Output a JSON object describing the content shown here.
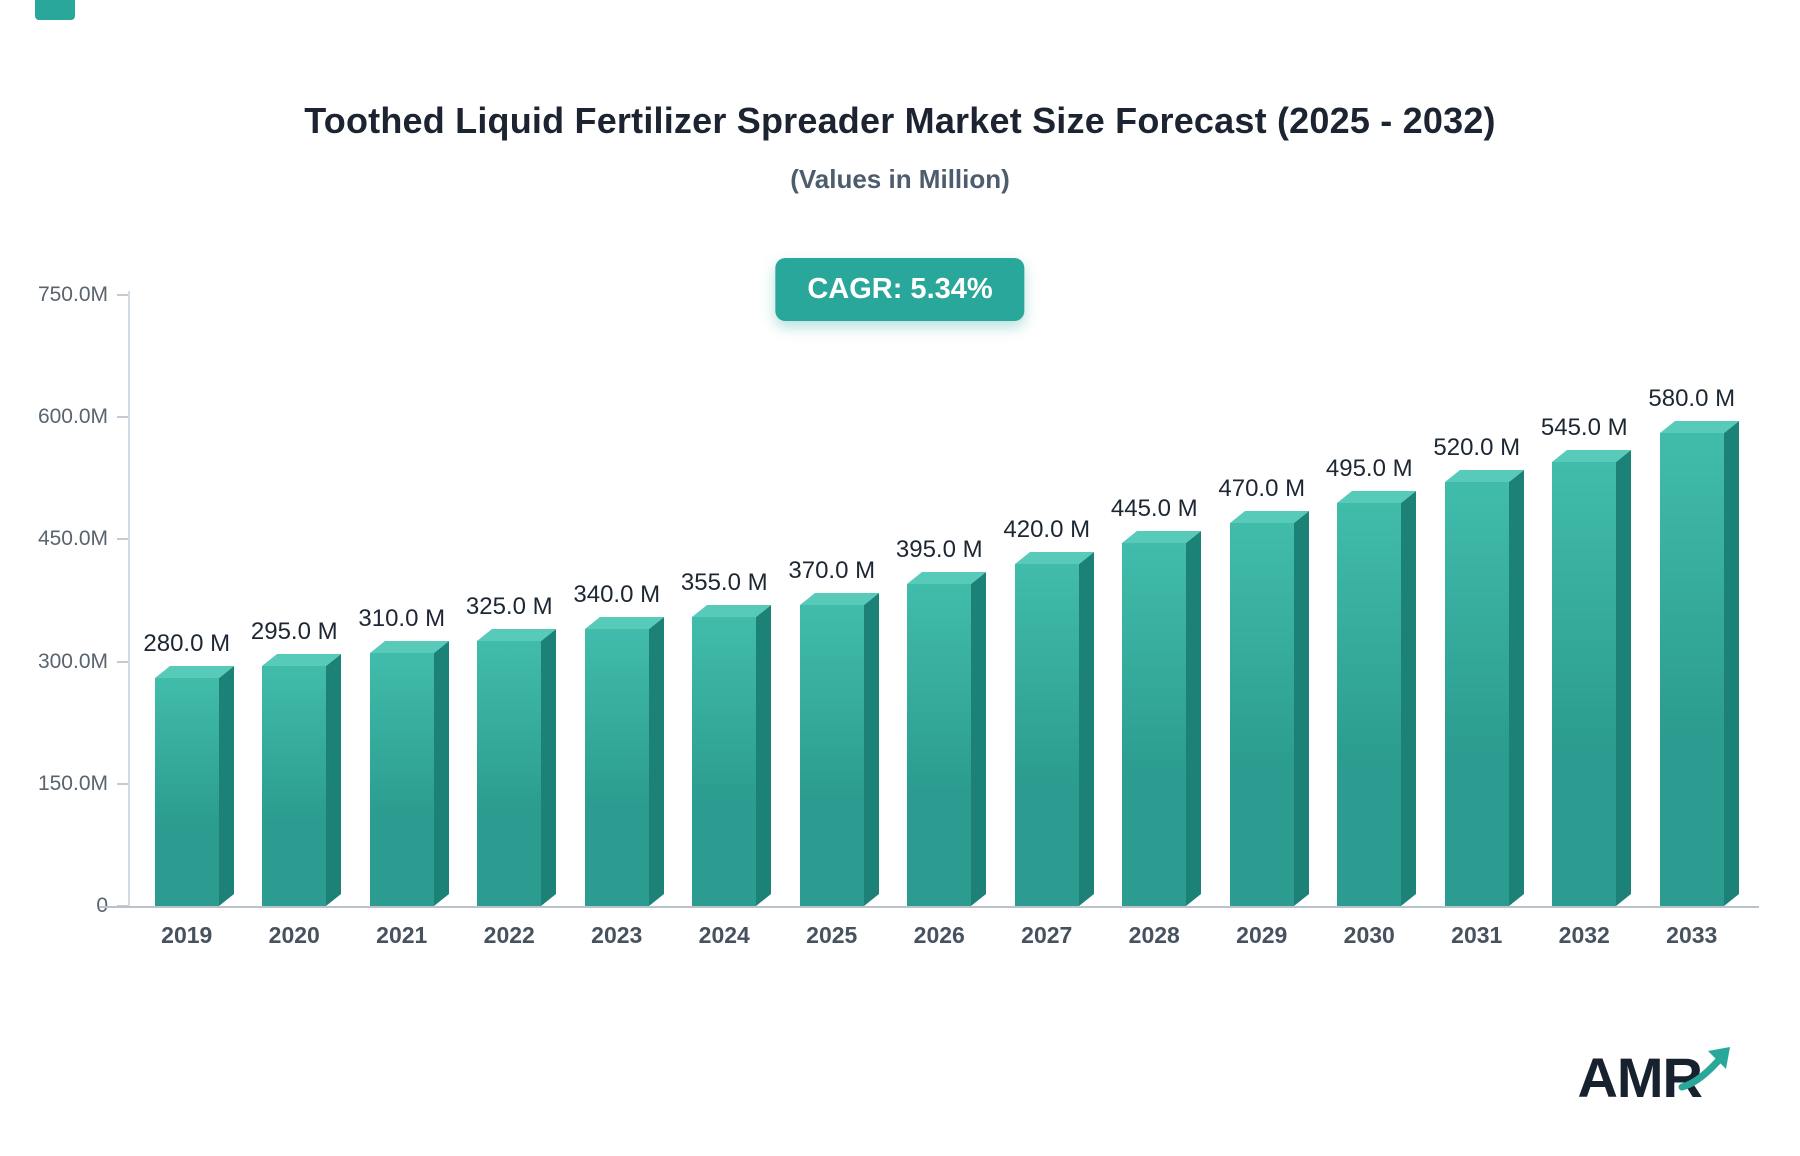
{
  "header": {
    "title": "Toothed Liquid Fertilizer Spreader Market Size Forecast (2025 - 2032)",
    "subtitle": "(Values in Million)",
    "cagr_badge": "CAGR: 5.34%"
  },
  "chart_data": {
    "type": "bar",
    "title": "Toothed Liquid Fertilizer Spreader Market Size Forecast (2025 - 2032)",
    "subtitle": "(Values in Million)",
    "cagr": "5.34%",
    "categories": [
      "2019",
      "2020",
      "2021",
      "2022",
      "2023",
      "2024",
      "2025",
      "2026",
      "2027",
      "2028",
      "2029",
      "2030",
      "2031",
      "2032",
      "2033"
    ],
    "values": [
      280,
      295,
      310,
      325,
      340,
      355,
      370,
      395,
      420,
      445,
      470,
      495,
      520,
      545,
      580
    ],
    "bar_labels": [
      "280.0 M",
      "295.0 M",
      "310.0 M",
      "325.0 M",
      "340.0 M",
      "355.0 M",
      "370.0 M",
      "395.0 M",
      "420.0 M",
      "445.0 M",
      "470.0 M",
      "495.0 M",
      "520.0 M",
      "545.0 M",
      "580.0 M"
    ],
    "unit": "Million",
    "xlabel": "",
    "ylabel": "",
    "ylim": [
      0,
      750
    ],
    "yticks": [
      0,
      150,
      300,
      450,
      600,
      750
    ],
    "ytick_labels": [
      "0",
      "150.0M",
      "300.0M",
      "450.0M",
      "600.0M",
      "750.0M"
    ],
    "grid": "off",
    "legend_position": "none",
    "colors": {
      "accent": "#2aa79b",
      "bar_light": "#41bcab",
      "bar_main": "#2b9c8f",
      "bar_side": "#1c8177",
      "bar_top": "#58cab9"
    }
  },
  "logo": {
    "text": "AMR"
  }
}
